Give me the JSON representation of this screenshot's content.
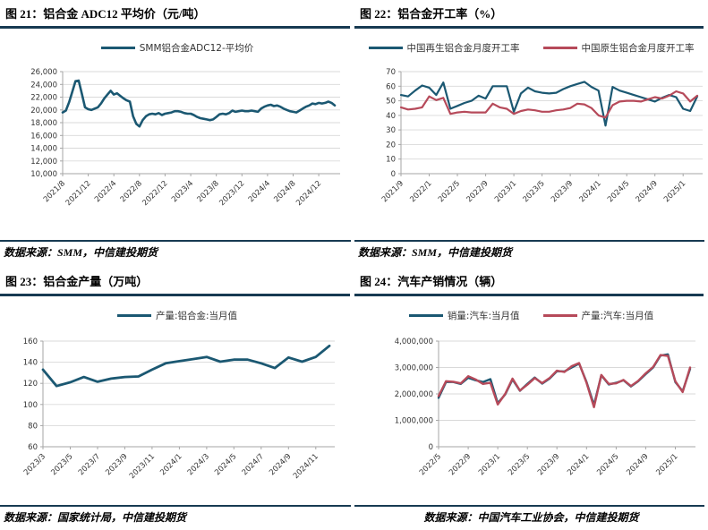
{
  "colors": {
    "accent_rule": "#173a52",
    "line_blue": "#1b5872",
    "line_red": "#b64a5a",
    "grid": "#d9d9d9",
    "axis": "#a6a6a6",
    "tick_text": "#333333"
  },
  "chart_data": [
    {
      "figure_no": "图 21",
      "title": "图 21：铝合金 ADC12 平均价（元/吨）",
      "source": "数据来源：SMM，中信建投期货",
      "type": "line",
      "x_start": "2021/8",
      "points_per_month": 2,
      "ylim": [
        10000,
        26000
      ],
      "y_ticks": [
        {
          "v": 26000,
          "label": "26,000"
        },
        {
          "v": 24000,
          "label": "24,000"
        },
        {
          "v": 22000,
          "label": "22,000"
        },
        {
          "v": 20000,
          "label": "20,000"
        },
        {
          "v": 18000,
          "label": "18,000"
        },
        {
          "v": 16000,
          "label": "16,000"
        },
        {
          "v": 14000,
          "label": "14,000"
        },
        {
          "v": 12000,
          "label": "12,000"
        },
        {
          "v": 10000,
          "label": "10,000"
        }
      ],
      "x_ticks": [
        {
          "month_index": 0,
          "label": "2021/8"
        },
        {
          "month_index": 4,
          "label": "2021/12"
        },
        {
          "month_index": 8,
          "label": "2022/4"
        },
        {
          "month_index": 12,
          "label": "2022/8"
        },
        {
          "month_index": 16,
          "label": "2022/12"
        },
        {
          "month_index": 20,
          "label": "2023/4"
        },
        {
          "month_index": 24,
          "label": "2023/8"
        },
        {
          "month_index": 28,
          "label": "2023/12"
        },
        {
          "month_index": 32,
          "label": "2024/4"
        },
        {
          "month_index": 36,
          "label": "2024/8"
        },
        {
          "month_index": 40,
          "label": "2024/12"
        }
      ],
      "series": [
        {
          "name": "SMM铝合金ADC12-平均价",
          "color": "#1b5872",
          "values": [
            19600,
            19900,
            21200,
            22800,
            24500,
            24600,
            22500,
            20400,
            20100,
            20000,
            20200,
            20400,
            21000,
            21800,
            22400,
            23000,
            22400,
            22600,
            22200,
            21800,
            21500,
            21300,
            19000,
            17800,
            17400,
            18400,
            19000,
            19300,
            19400,
            19300,
            19500,
            19200,
            19400,
            19500,
            19600,
            19800,
            19800,
            19700,
            19500,
            19400,
            19400,
            19200,
            18900,
            18700,
            18600,
            18500,
            18400,
            18500,
            18900,
            19300,
            19400,
            19300,
            19500,
            19900,
            19700,
            19800,
            19900,
            19800,
            19800,
            19900,
            19800,
            19700,
            20200,
            20500,
            20700,
            20800,
            20600,
            20700,
            20500,
            20200,
            20000,
            19800,
            19700,
            19600,
            19900,
            20200,
            20500,
            20700,
            21000,
            20900,
            21100,
            21000,
            21100,
            21300,
            21100,
            20700
          ]
        }
      ]
    },
    {
      "figure_no": "图 22",
      "title": "图 22：铝合金开工率（%）",
      "source": "数据来源：SMM，中信建投期货",
      "type": "line",
      "x_start": "2021/9",
      "points_per_month": 1,
      "ylim": [
        0,
        70
      ],
      "y_ticks": [
        {
          "v": 70,
          "label": "70"
        },
        {
          "v": 60,
          "label": "60"
        },
        {
          "v": 50,
          "label": "50"
        },
        {
          "v": 40,
          "label": "40"
        },
        {
          "v": 30,
          "label": "30"
        },
        {
          "v": 20,
          "label": "20"
        },
        {
          "v": 10,
          "label": "10"
        },
        {
          "v": 0,
          "label": "0"
        }
      ],
      "x_ticks": [
        {
          "month_index": 0,
          "label": "2021/9"
        },
        {
          "month_index": 4,
          "label": "2022/1"
        },
        {
          "month_index": 8,
          "label": "2022/5"
        },
        {
          "month_index": 12,
          "label": "2022/9"
        },
        {
          "month_index": 16,
          "label": "2023/1"
        },
        {
          "month_index": 20,
          "label": "2023/5"
        },
        {
          "month_index": 24,
          "label": "2023/9"
        },
        {
          "month_index": 28,
          "label": "2024/1"
        },
        {
          "month_index": 32,
          "label": "2024/5"
        },
        {
          "month_index": 36,
          "label": "2024/9"
        },
        {
          "month_index": 40,
          "label": "2025/1"
        }
      ],
      "series": [
        {
          "name": "中国再生铝合金月度开工率",
          "color": "#1b5872",
          "values": [
            54,
            53,
            57,
            60.5,
            59,
            54,
            62.5,
            44.5,
            46.5,
            48.5,
            50,
            53.5,
            51.5,
            60,
            60,
            60,
            42.5,
            55,
            59,
            56.5,
            55.5,
            55,
            55.5,
            58,
            60,
            61.5,
            63,
            59.5,
            57,
            33,
            59.5,
            57,
            55.5,
            54,
            52.5,
            51,
            49.5,
            52,
            54,
            52.5,
            44.5,
            43,
            53
          ]
        },
        {
          "name": "中国原生铝合金月度开工率",
          "color": "#b64a5a",
          "values": [
            45.5,
            44,
            44.5,
            45.5,
            53,
            50.5,
            52,
            41,
            42,
            42.5,
            42,
            42,
            42,
            48,
            45.5,
            44.5,
            41,
            43,
            44,
            43.5,
            42.5,
            42.5,
            43.5,
            44,
            45,
            48,
            47.5,
            45,
            40,
            38.5,
            47,
            49.5,
            50,
            50,
            49.5,
            51,
            52.5,
            51.5,
            53.5,
            56.5,
            55,
            49.5,
            53.5
          ]
        }
      ]
    },
    {
      "figure_no": "图 23",
      "title": "图 23：铝合金产量（万吨）",
      "source": "数据来源：国家统计局，中信建投期货",
      "type": "line",
      "x_start": "2023/3",
      "points_per_month": 1,
      "ylim": [
        60,
        160
      ],
      "y_ticks": [
        {
          "v": 160,
          "label": "160"
        },
        {
          "v": 140,
          "label": "140"
        },
        {
          "v": 120,
          "label": "120"
        },
        {
          "v": 100,
          "label": "100"
        },
        {
          "v": 80,
          "label": "80"
        },
        {
          "v": 60,
          "label": "60"
        }
      ],
      "x_ticks": [
        {
          "month_index": 0,
          "label": "2023/3"
        },
        {
          "month_index": 2,
          "label": "2023/5"
        },
        {
          "month_index": 4,
          "label": "2023/7"
        },
        {
          "month_index": 6,
          "label": "2023/9"
        },
        {
          "month_index": 8,
          "label": "2023/11"
        },
        {
          "month_index": 10,
          "label": "2024/1"
        },
        {
          "month_index": 12,
          "label": "2024/3"
        },
        {
          "month_index": 14,
          "label": "2024/5"
        },
        {
          "month_index": 16,
          "label": "2024/7"
        },
        {
          "month_index": 18,
          "label": "2024/9"
        },
        {
          "month_index": 20,
          "label": "2024/11"
        }
      ],
      "series": [
        {
          "name": "产量:铝合金:当月值",
          "color": "#1b5872",
          "values": [
            133,
            117.5,
            121,
            126,
            121.5,
            124.5,
            126,
            126.5,
            133,
            139,
            141,
            143,
            145,
            140.5,
            142.5,
            142.5,
            139,
            134.5,
            144.5,
            140.5,
            145,
            155.5
          ]
        }
      ]
    },
    {
      "figure_no": "图 24",
      "title": "图 24：汽车产销情况（辆）",
      "source": "数据来源：中国汽车工业协会，中信建投期货",
      "type": "line",
      "x_start": "2022/5",
      "points_per_month": 1,
      "ylim": [
        0,
        4000000
      ],
      "y_ticks": [
        {
          "v": 4000000,
          "label": "4,000,000"
        },
        {
          "v": 3000000,
          "label": "3,000,000"
        },
        {
          "v": 2000000,
          "label": "2,000,000"
        },
        {
          "v": 1000000,
          "label": "1,000,000"
        },
        {
          "v": 0,
          "label": "0"
        }
      ],
      "x_ticks": [
        {
          "month_index": 0,
          "label": "2022/5"
        },
        {
          "month_index": 4,
          "label": "2022/9"
        },
        {
          "month_index": 8,
          "label": "2023/1"
        },
        {
          "month_index": 12,
          "label": "2023/5"
        },
        {
          "month_index": 16,
          "label": "2023/9"
        },
        {
          "month_index": 20,
          "label": "2024/1"
        },
        {
          "month_index": 24,
          "label": "2024/5"
        },
        {
          "month_index": 28,
          "label": "2024/9"
        },
        {
          "month_index": 32,
          "label": "2025/1"
        }
      ],
      "series": [
        {
          "name": "销量:汽车:当月值",
          "color": "#1b5872",
          "values": [
            1850000,
            2450000,
            2450000,
            2380000,
            2610000,
            2520000,
            2450000,
            2560000,
            1650000,
            1980000,
            2550000,
            2120000,
            2380000,
            2620000,
            2390000,
            2580000,
            2860000,
            2850000,
            3000000,
            3150000,
            2450000,
            1580000,
            2700000,
            2360000,
            2420000,
            2520000,
            2280000,
            2480000,
            2750000,
            3000000,
            3450000,
            3500000,
            2450000,
            2100000,
            2950000
          ]
        },
        {
          "name": "产量:汽车:当月值",
          "color": "#b64a5a",
          "values": [
            1920000,
            2480000,
            2460000,
            2400000,
            2670000,
            2550000,
            2380000,
            2420000,
            1600000,
            2000000,
            2580000,
            2130000,
            2350000,
            2600000,
            2410000,
            2600000,
            2880000,
            2830000,
            3050000,
            3170000,
            2420000,
            1500000,
            2720000,
            2380000,
            2400000,
            2530000,
            2300000,
            2500000,
            2780000,
            3020000,
            3470000,
            3440000,
            2480000,
            2070000,
            3000000
          ]
        }
      ]
    }
  ]
}
